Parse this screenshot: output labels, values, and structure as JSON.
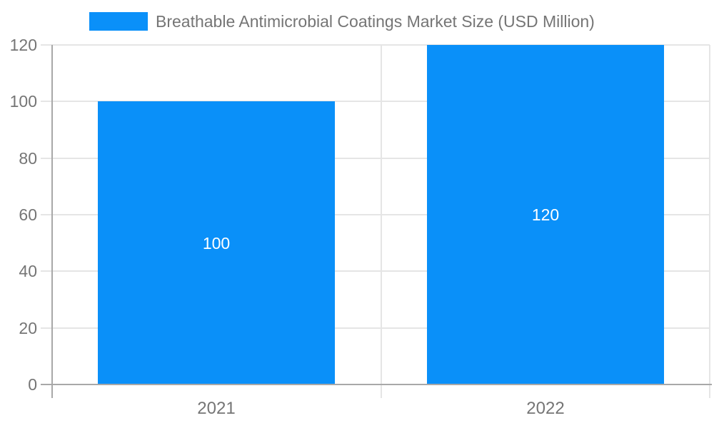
{
  "chart_data": {
    "type": "bar",
    "title": "Breathable Antimicrobial Coatings Market Size (USD Million)",
    "categories": [
      "2021",
      "2022"
    ],
    "series": [
      {
        "name": "Breathable Antimicrobial Coatings Market Size (USD Million)",
        "values": [
          100,
          120
        ]
      }
    ],
    "data_labels": [
      "100",
      "120"
    ],
    "xlabel": "",
    "ylabel": "",
    "ylim": [
      0,
      120
    ],
    "yticks": [
      0,
      20,
      40,
      60,
      80,
      100,
      120
    ],
    "grid": "horizontal",
    "legend_position": "top",
    "colors": {
      "bar": "#0a90f9",
      "axis_line": "#a8a8a8",
      "gridline": "#e5e5e5",
      "tick_text": "#757575",
      "data_label_text": "#ffffff",
      "background": "#ffffff"
    }
  }
}
